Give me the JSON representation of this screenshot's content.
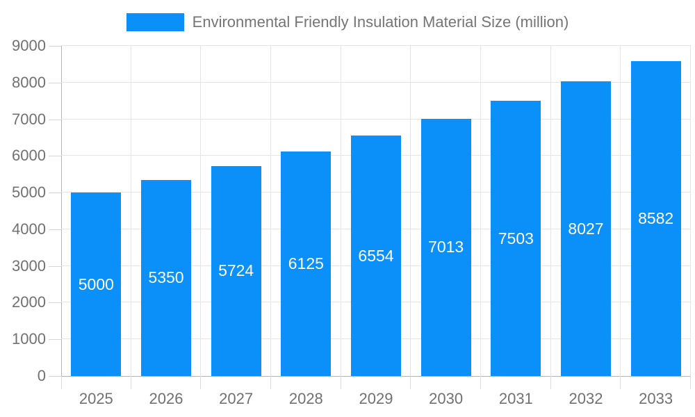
{
  "chart_data": {
    "type": "bar",
    "title": "",
    "legend": "Environmental Friendly Insulation Material Size (million)",
    "legend_position": "top",
    "categories": [
      "2025",
      "2026",
      "2027",
      "2028",
      "2029",
      "2030",
      "2031",
      "2032",
      "2033"
    ],
    "values": [
      5000,
      5350,
      5724,
      6125,
      6554,
      7013,
      7503,
      8027,
      8582
    ],
    "value_labels": [
      "5000",
      "5350",
      "5724",
      "6125",
      "6554",
      "7013",
      "7503",
      "8027",
      "8582"
    ],
    "xlabel": "",
    "ylabel": "",
    "ylim": [
      0,
      9000
    ],
    "ytick_step": 1000,
    "ytick_labels": [
      "0",
      "1000",
      "2000",
      "3000",
      "4000",
      "5000",
      "6000",
      "7000",
      "8000",
      "9000"
    ],
    "grid": true,
    "colors": {
      "bar": "#0a90f8",
      "value_text": "#ffffff",
      "axis_text": "#717171",
      "legend_text": "#757575",
      "grid_line": "#e5e5e5",
      "axis_line": "#b3b3b3"
    }
  }
}
